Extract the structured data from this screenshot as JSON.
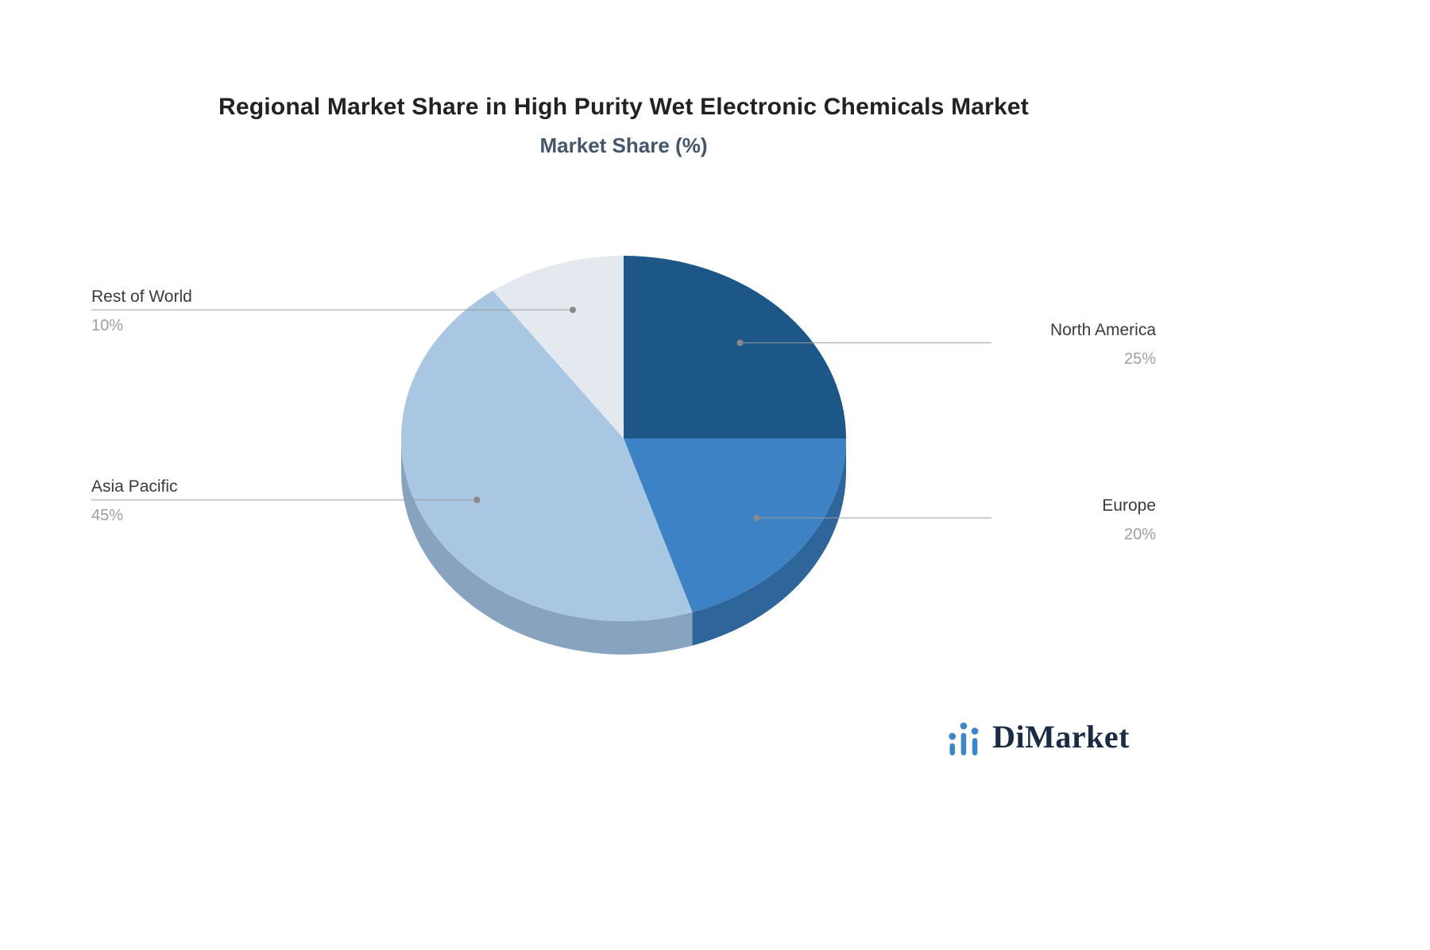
{
  "page": {
    "background": "#ffffff"
  },
  "header": {
    "title": "Regional Market Share in High Purity Wet Electronic Chemicals Market",
    "subtitle": "Market Share (%)"
  },
  "chart_data": {
    "type": "pie",
    "style": "3d",
    "title": "Regional Market Share in High Purity Wet Electronic Chemicals Market",
    "subtitle": "Market Share (%)",
    "unit": "%",
    "start_angle": "12 o'clock",
    "direction": "clockwise",
    "legend_position": "none",
    "label_style": "leader-lines",
    "categories": [
      "North America",
      "Europe",
      "Asia Pacific",
      "Rest of World"
    ],
    "values": [
      25,
      20,
      45,
      10
    ],
    "slices": [
      {
        "label": "North America",
        "value": 25,
        "value_label": "25%",
        "color": "#1d5788",
        "depth_color": "#15436a"
      },
      {
        "label": "Europe",
        "value": 20,
        "value_label": "20%",
        "color": "#3d82c4",
        "depth_color": "#2e669c"
      },
      {
        "label": "Asia Pacific",
        "value": 45,
        "value_label": "45%",
        "color": "#a9c6e3",
        "depth_color": "#87a3bf"
      },
      {
        "label": "Rest of World",
        "value": 10,
        "value_label": "10%",
        "color": "#e4e9ef",
        "depth_color": "#bec7d1"
      }
    ],
    "label_name_color": "#3b3b3b",
    "label_value_color": "#9e9e9e",
    "leader_line_color": "#9b9b9b",
    "leader_dot_color": "#8a8a8a"
  },
  "branding": {
    "logo_text": "DiMarket",
    "logo_text_color": "#1c2b44",
    "logo_icon_color": "#3d87c9"
  }
}
